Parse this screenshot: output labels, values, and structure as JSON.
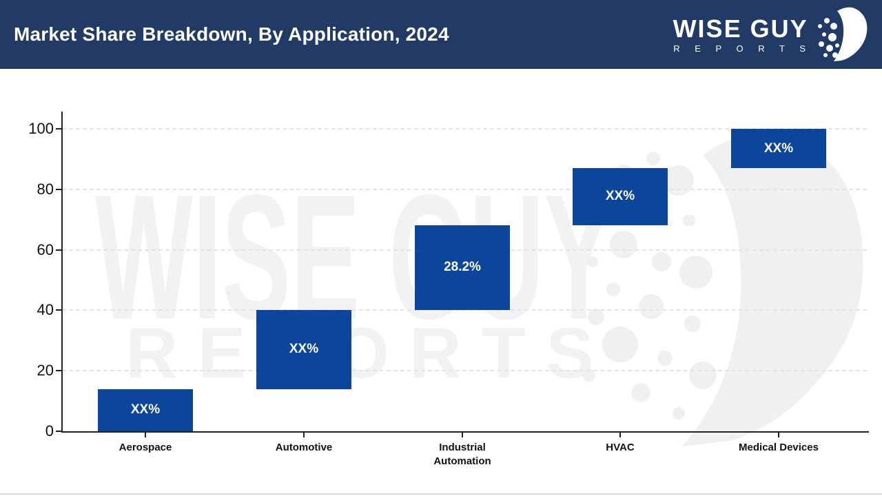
{
  "header": {
    "title": "Market Share Breakdown, By Application, 2024",
    "logo": {
      "primary": "WISE GUY",
      "secondary": "R E P O R T S"
    },
    "bg_color": "#213a66"
  },
  "watermark": {
    "line1": "WISE GUY",
    "line2": "R E P O R T S"
  },
  "chart_data": {
    "type": "bar",
    "subtype": "floating-waterfall",
    "title": "Market Share Breakdown, By Application, 2024",
    "categories": [
      "Aerospace",
      "Automotive",
      "Industrial Automation",
      "HVAC",
      "Medical Devices"
    ],
    "segments": [
      {
        "category": "Aerospace",
        "start": 0,
        "end": 14,
        "value": 14,
        "label": "XX%"
      },
      {
        "category": "Automotive",
        "start": 14,
        "end": 40,
        "value": 26,
        "label": "XX%"
      },
      {
        "category": "Industrial Automation",
        "start": 40,
        "end": 68.2,
        "value": 28.2,
        "label": "28.2%"
      },
      {
        "category": "HVAC",
        "start": 68.2,
        "end": 87,
        "value": 18.8,
        "label": "XX%"
      },
      {
        "category": "Medical Devices",
        "start": 87,
        "end": 100,
        "value": 13,
        "label": "XX%"
      }
    ],
    "yticks": [
      0,
      20,
      40,
      60,
      80,
      100
    ],
    "ylim": [
      0,
      105
    ],
    "xlabel": "",
    "ylabel": "",
    "grid": "horizontal-dashed",
    "legend": "none",
    "bar_color": "#0b469c",
    "bar_label_color": "#ffffff",
    "axis_color": "#222222",
    "gridline_color": "#e4e4e4",
    "watermark_color": "#f2f2f2"
  }
}
